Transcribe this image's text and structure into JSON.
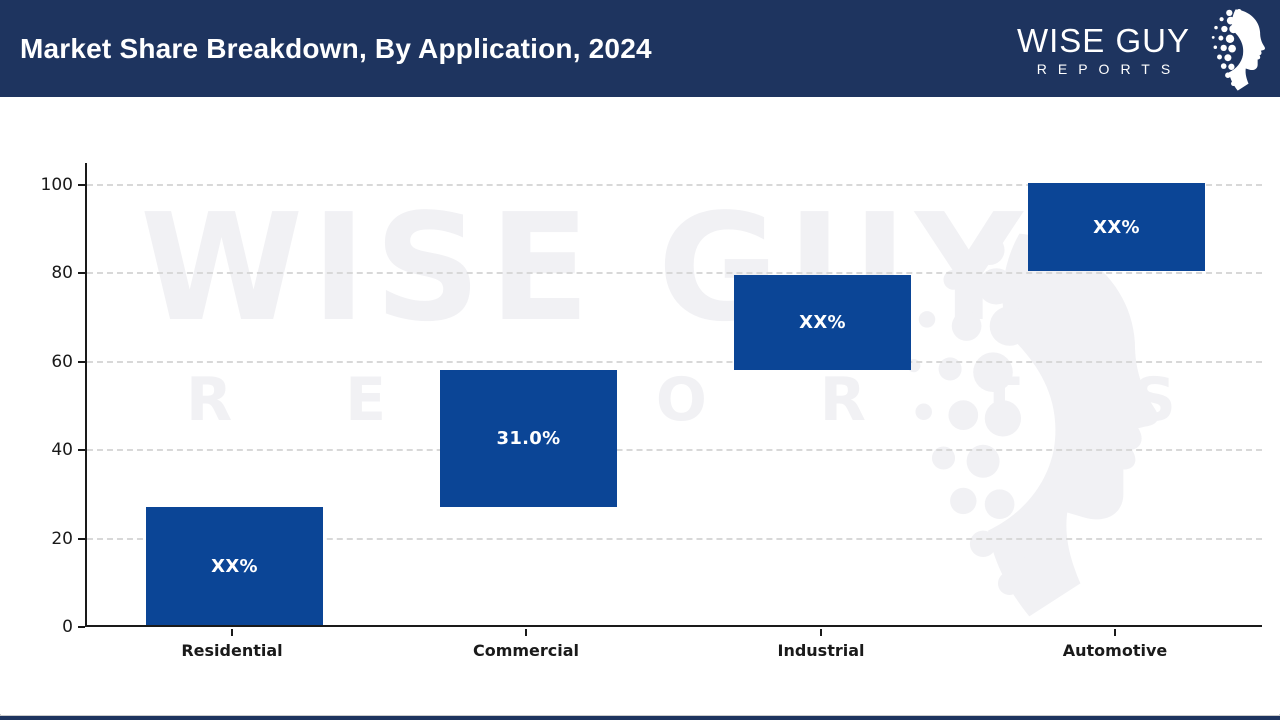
{
  "header": {
    "title": "Market Share Breakdown, By Application, 2024",
    "logo_line1": "WISE GUY",
    "logo_line2": "REPORTS",
    "bg_color": "#1e345f"
  },
  "watermark": {
    "line1": "WISE GUY",
    "line2": "R E P O R T S"
  },
  "chart_data": {
    "type": "bar",
    "variant": "floating-waterfall",
    "title": "Market Share Breakdown, By Application, 2024",
    "categories": [
      "Residential",
      "Commercial",
      "Industrial",
      "Automotive"
    ],
    "segments": [
      {
        "category": "Residential",
        "base": 0,
        "top": 26.8,
        "label": "XX%"
      },
      {
        "category": "Commercial",
        "base": 26.8,
        "top": 57.8,
        "label": "31.0%"
      },
      {
        "category": "Industrial",
        "base": 57.8,
        "top": 79.2,
        "label": "XX%"
      },
      {
        "category": "Automotive",
        "base": 80,
        "top": 100,
        "label": "XX%"
      }
    ],
    "ylim": [
      0,
      105
    ],
    "yticks": [
      0,
      20,
      40,
      60,
      80,
      100
    ],
    "xlabel": "",
    "ylabel": "",
    "grid": "horizontal dashed",
    "legend": "none",
    "bar_color": "#0b4596",
    "bar_label_color": "#ffffff",
    "axis_color": "#1a1a1a",
    "grid_color": "#d8d8d8"
  },
  "footer": {
    "bar_color": "#1e345f"
  }
}
